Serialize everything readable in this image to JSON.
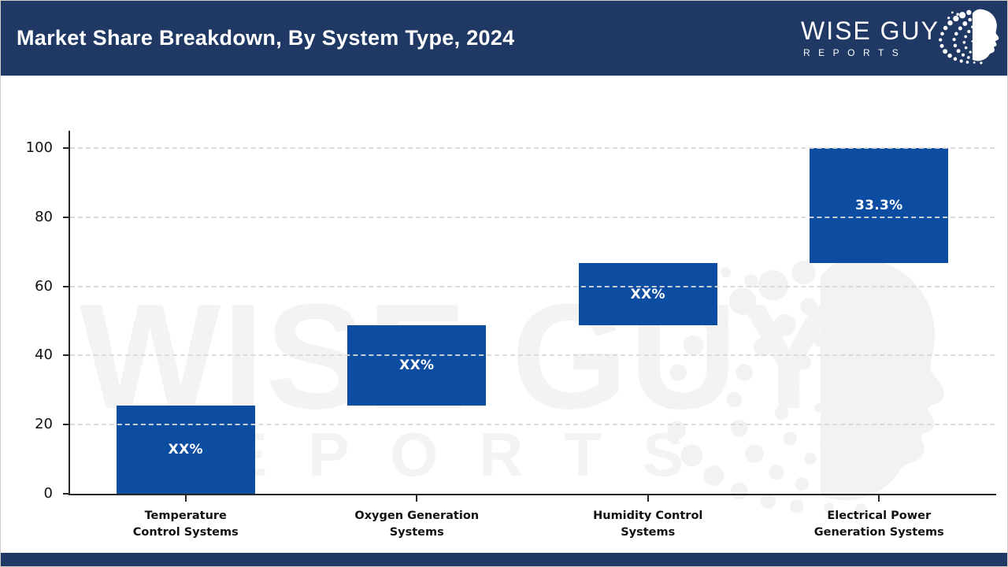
{
  "header": {
    "title": "Market Share Breakdown, By System Type, 2024"
  },
  "logo": {
    "wordmark": "WISE GUY",
    "sub": "REPORTS"
  },
  "watermark": {
    "wordmark": "WISE GUY",
    "sub": "REPORTS"
  },
  "chart_data": {
    "type": "bar",
    "subtype": "floating-segment waterfall, market share breakdown",
    "title": "Market Share Breakdown, By System Type, 2024",
    "categories": [
      "Temperature Control Systems",
      "Oxygen Generation Systems",
      "Humidity Control Systems",
      "Electrical Power Generation Systems"
    ],
    "category_lines": [
      [
        "Temperature",
        "Control Systems"
      ],
      [
        "Oxygen Generation",
        "Systems"
      ],
      [
        "Humidity Control",
        "Systems"
      ],
      [
        "Electrical Power",
        "Generation Systems"
      ]
    ],
    "segments": [
      {
        "start": 0,
        "end": 25.5,
        "label": "XX%"
      },
      {
        "start": 25.5,
        "end": 48.7,
        "label": "XX%"
      },
      {
        "start": 48.7,
        "end": 66.7,
        "label": "XX%"
      },
      {
        "start": 66.7,
        "end": 100,
        "label": "33.3%"
      }
    ],
    "ylim": [
      0,
      100
    ],
    "yticks": [
      0,
      20,
      40,
      60,
      80,
      100
    ],
    "xlabel": "",
    "ylabel": "",
    "grid": "horizontal dashed, drawn over bars",
    "legend": "none",
    "colors": {
      "bar": "#0d4da1",
      "grid": "#d9d9d9",
      "axis": "#262626",
      "navy": "#1f3864",
      "watermark": "#f2f2f2",
      "value_label": "#ffffff"
    }
  }
}
